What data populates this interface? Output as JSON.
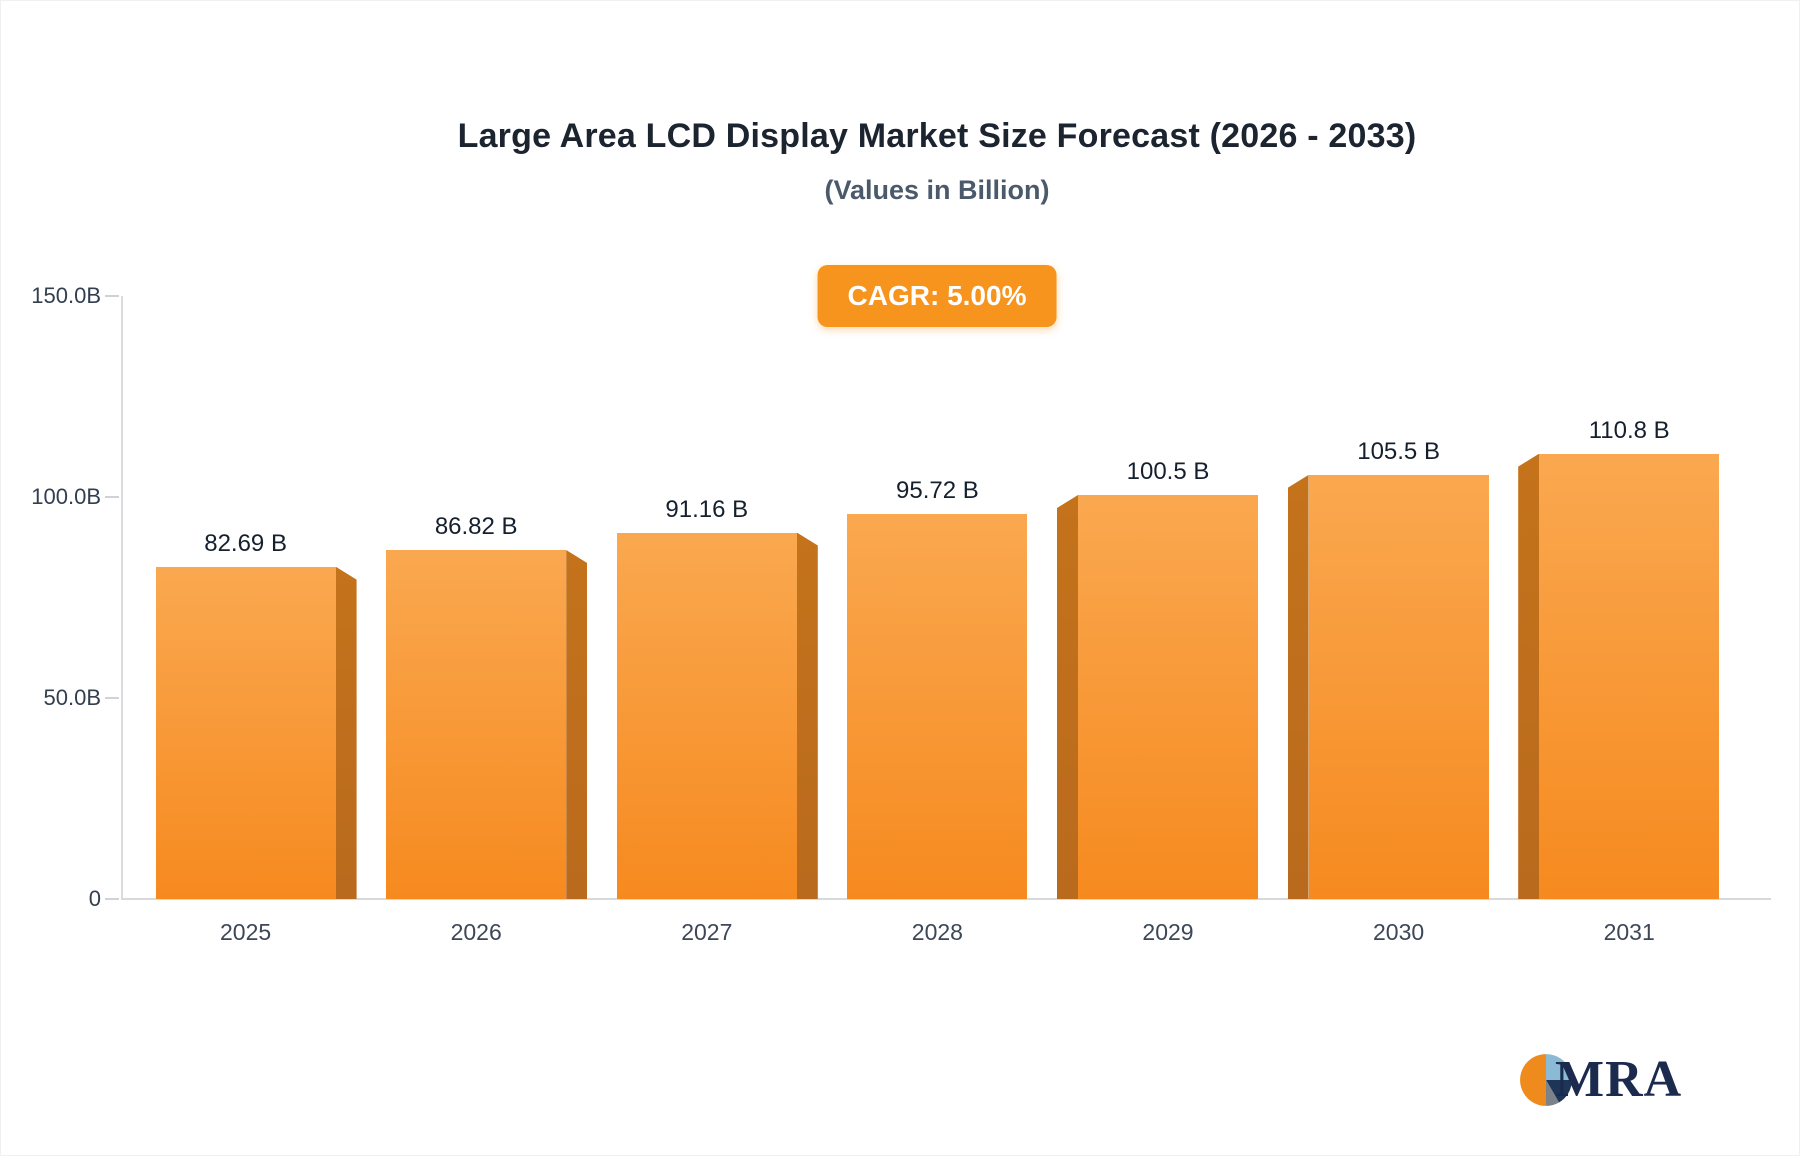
{
  "chart_data": {
    "type": "bar",
    "title": "Large Area LCD Display Market Size Forecast (2026 - 2033)",
    "subtitle": "(Values in Billion)",
    "badge_label": "CAGR: 5.00%",
    "categories": [
      "2025",
      "2026",
      "2027",
      "2028",
      "2029",
      "2030",
      "2031"
    ],
    "values": [
      82.69,
      86.82,
      91.16,
      95.72,
      100.5,
      105.5,
      110.8
    ],
    "value_labels": [
      "82.69 B",
      "86.82 B",
      "91.16 B",
      "95.72 B",
      "100.5 B",
      "105.5 B",
      "110.8 B"
    ],
    "ylabel": "",
    "xlabel": "",
    "ylim": [
      0,
      150
    ],
    "yticks": [
      0,
      50,
      100,
      150
    ],
    "ytick_labels": [
      "0",
      "50.0B",
      "100.0B",
      "150.0B"
    ],
    "grid": "off",
    "legend": "none",
    "colors": {
      "bar_top": "#FAA850",
      "bar_bottom": "#F68A1F",
      "bar_side": "#C4731B",
      "badge_bg": "#F7941E",
      "badge_text": "#FFFFFF",
      "title_text": "#1C2430",
      "subtitle_text": "#4B5A6B",
      "axis_line": "#D9DBDD"
    }
  },
  "logo": {
    "text": "MRA",
    "icon_colors": {
      "orange": "#EF8A1D",
      "light_blue": "#8ABAD6",
      "navy": "#1D3557",
      "gray": "#7C8289"
    }
  }
}
